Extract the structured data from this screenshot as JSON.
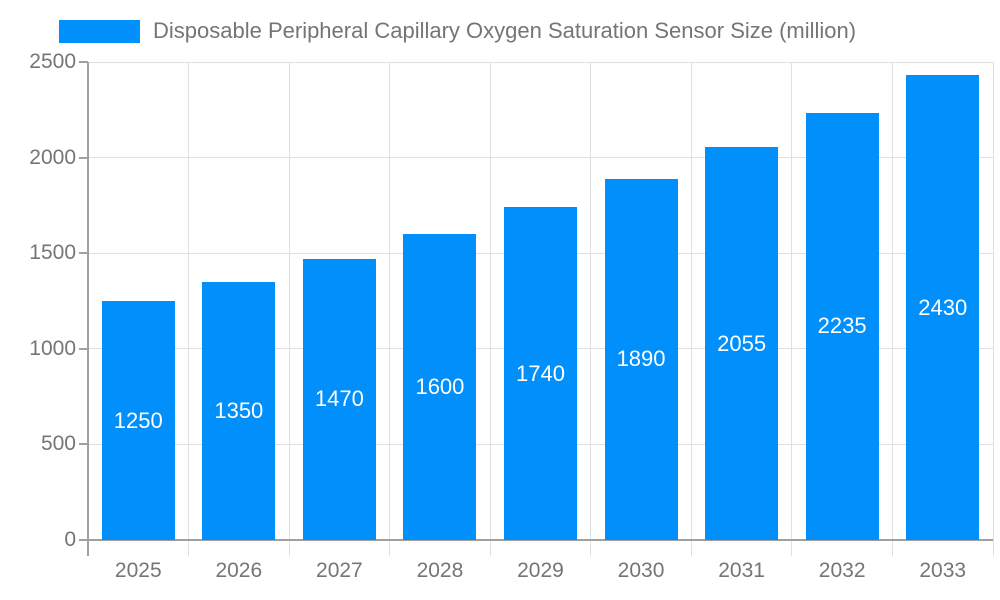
{
  "chart_data": {
    "type": "bar",
    "title": "Disposable Peripheral Capillary Oxygen Saturation Sensor Size (million)",
    "categories": [
      "2025",
      "2026",
      "2027",
      "2028",
      "2029",
      "2030",
      "2031",
      "2032",
      "2033"
    ],
    "values": [
      1250,
      1350,
      1470,
      1600,
      1740,
      1890,
      2055,
      2235,
      2430
    ],
    "xlabel": "",
    "ylabel": "",
    "ylim": [
      0,
      2500
    ],
    "yticks": [
      0,
      500,
      1000,
      1500,
      2000,
      2500
    ],
    "grid": true,
    "legend_position": "top",
    "bar_value_labels": "inside-center",
    "colors": {
      "bar": "#008FFB",
      "bar_label": "#FFFFFF",
      "text": "#757575",
      "axis": "#A0A0A0",
      "gridline": "#E0E0E0",
      "background": "#FFFFFF"
    }
  }
}
